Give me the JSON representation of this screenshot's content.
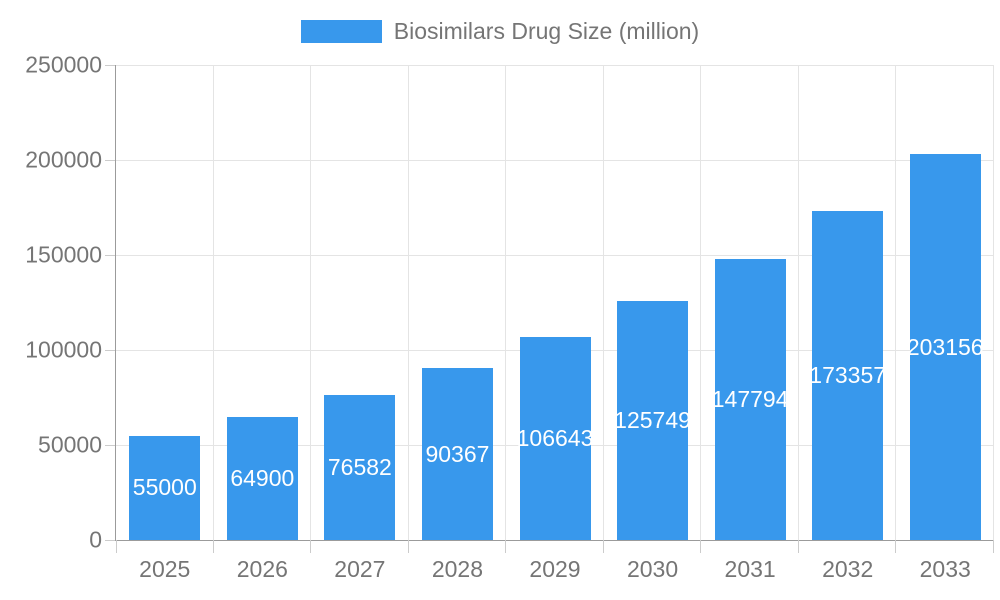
{
  "legend": {
    "label": "Biosimilars Drug Size (million)"
  },
  "chart_data": {
    "type": "bar",
    "title": "Biosimilars Drug Size (million)",
    "categories": [
      "2025",
      "2026",
      "2027",
      "2028",
      "2029",
      "2030",
      "2031",
      "2032",
      "2033"
    ],
    "values": [
      55000,
      64900,
      76582,
      90367,
      106643,
      125749,
      147794,
      173357,
      203156
    ],
    "series": [
      {
        "name": "Biosimilars Drug Size (million)",
        "values": [
          55000,
          64900,
          76582,
          90367,
          106643,
          125749,
          147794,
          173357,
          203156
        ]
      }
    ],
    "xlabel": "",
    "ylabel": "",
    "ylim": [
      0,
      250000
    ],
    "ytick_step": 50000,
    "ytick_labels": [
      "0",
      "50000",
      "100000",
      "150000",
      "200000",
      "250000"
    ],
    "grid": true,
    "legend_position": "top",
    "value_labels": "inside-center",
    "colors": {
      "bar": "#3898EC",
      "value_text": "#FFFFFF",
      "axis_text": "#757575",
      "grid_line": "#E4E4E4",
      "axis_line": "#9B9B9B",
      "tick": "#CCCCCC",
      "background": "#FFFFFF"
    }
  }
}
